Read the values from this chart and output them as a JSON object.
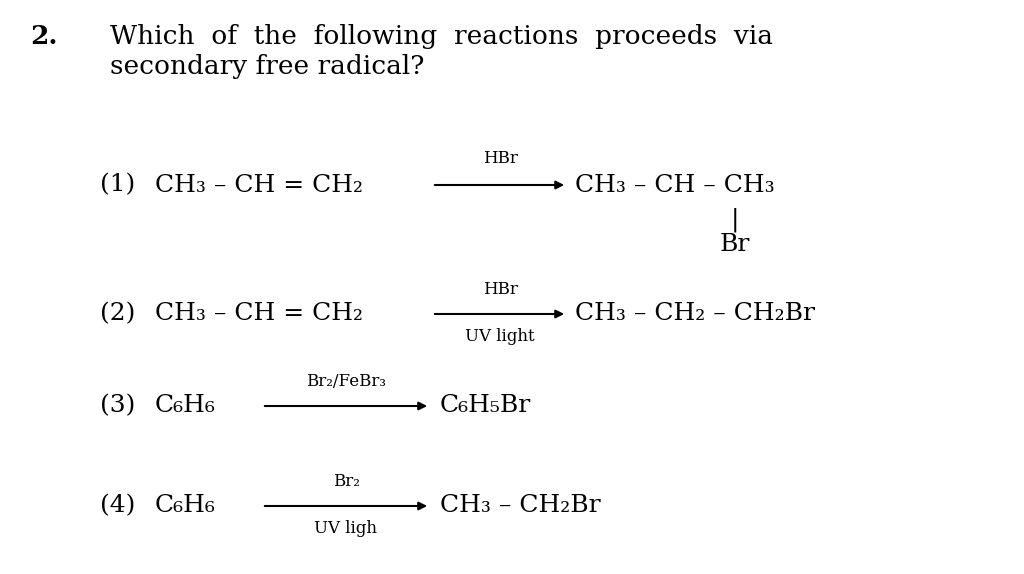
{
  "background_color": "#ffffff",
  "text_color": "#000000",
  "q_num": "2.",
  "q_line1": "Which  of  the  following  reactions  proceeds  via",
  "q_line2": "secondary free radical?",
  "fs_q": 19,
  "fs_chem": 18,
  "fs_reagent": 12,
  "opt1_num": "(1)",
  "opt1_reactant": "CH₃ – CH = CH₂",
  "opt1_reagent_top": "HBr",
  "opt1_reagent_bot": "",
  "opt1_product": "CH₃ – CH – CH₃",
  "opt1_bond": "|",
  "opt1_sub": "Br",
  "opt2_num": "(2)",
  "opt2_reactant": "CH₃ – CH = CH₂",
  "opt2_reagent_top": "HBr",
  "opt2_reagent_bot": "UV light",
  "opt2_product": "CH₃ – CH₂ – CH₂Br",
  "opt3_num": "(3)",
  "opt3_reactant": "C₆H₆",
  "opt3_reagent_top": "Br₂/FeBr₃",
  "opt3_reagent_bot": "",
  "opt3_product": "C₆H₅Br",
  "opt4_num": "(4)",
  "opt4_reactant": "C₆H₆",
  "opt4_reagent_top": "Br₂",
  "opt4_reagent_bot": "UV ligh",
  "opt4_product": "CH₃ – CH₂Br"
}
